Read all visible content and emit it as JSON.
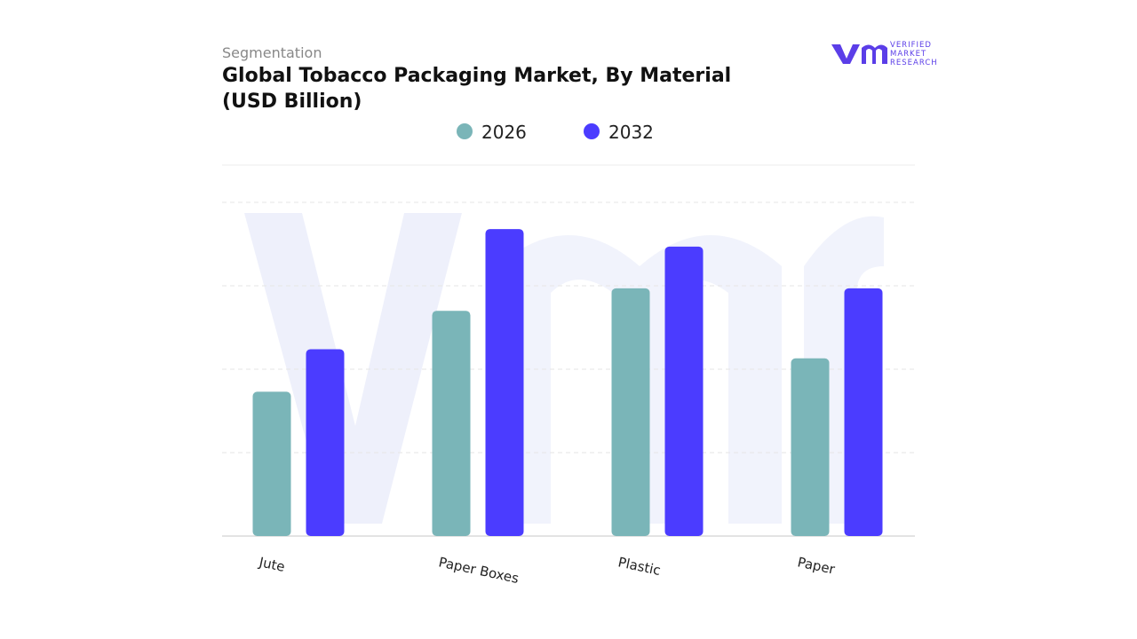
{
  "chart_data": {
    "type": "bar",
    "subtitle": "Segmentation",
    "title": "Global Tobacco Packaging Market, By Material",
    "title_line2": "(USD Billion)",
    "categories": [
      "Jute",
      "Paper Boxes",
      "Plastic",
      "Paper"
    ],
    "series": [
      {
        "name": "2026",
        "color": "#7ab5b8",
        "values": [
          1.73,
          2.7,
          2.97,
          2.13
        ]
      },
      {
        "name": "2032",
        "color": "#4b3cff",
        "values": [
          2.24,
          3.68,
          3.47,
          2.97
        ]
      }
    ],
    "ylim": [
      0,
      4
    ],
    "yticks": [
      0,
      1,
      2,
      3,
      4
    ],
    "grid": true
  },
  "logo": {
    "line1": "VERIFIED",
    "line2": "MARKET",
    "line3": "RESEARCH"
  }
}
